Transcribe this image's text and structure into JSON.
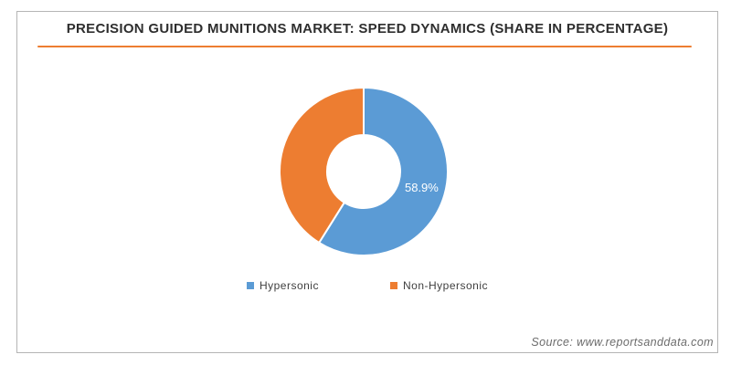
{
  "chart_data": {
    "type": "pie",
    "subtype": "donut",
    "title": "PRECISION GUIDED MUNITIONS MARKET: SPEED DYNAMICS (SHARE IN PERCENTAGE)",
    "unit": "percent",
    "slices": [
      {
        "label": "Hypersonic",
        "value": 58.9,
        "color": "#5B9BD5",
        "data_label": "58.9%"
      },
      {
        "label": "Non-Hypersonic",
        "value": 41.1,
        "color": "#ED7D31",
        "data_label": null
      }
    ],
    "start_angle_deg": 0,
    "clockwise": true,
    "donut_hole_ratio": 0.435,
    "legend_position": "bottom",
    "data_label_color": "#FFFFFF",
    "slice_gap_color": "#FFFFFF"
  },
  "footer": {
    "source": "Source: www.reportsanddata.com"
  },
  "colors": {
    "accent_rule": "#ED7D31",
    "frame_border": "#B5B5B5",
    "title_text": "#2E2E2E",
    "legend_text": "#404040",
    "source_text": "#6B6B6B"
  }
}
